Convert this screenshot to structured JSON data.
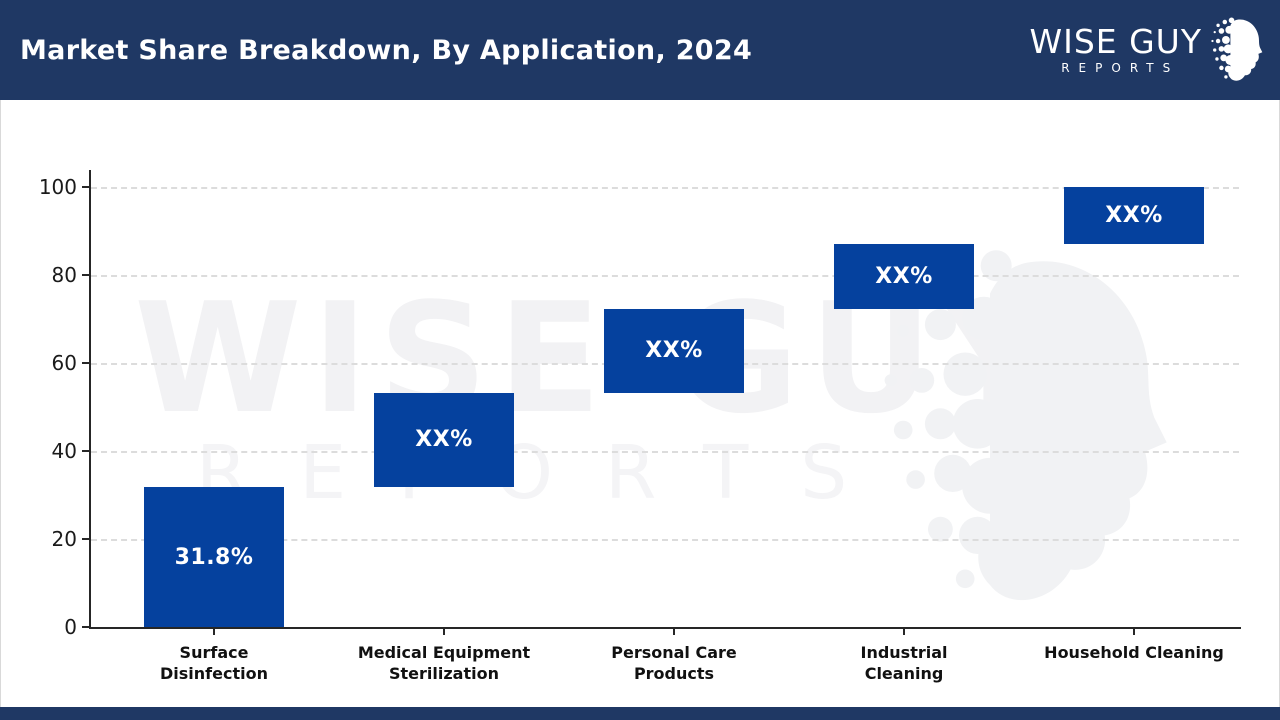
{
  "header": {
    "title": "Market Share Breakdown, By Application, 2024",
    "logo": {
      "line1": "WISE GUY",
      "line2": "REPORTS"
    }
  },
  "watermark": {
    "line1": "WISE GUY",
    "line2": "REPORTS"
  },
  "colors": {
    "header_bg": "#1f3864",
    "footer_bg": "#1f3864",
    "bar": "#05419e",
    "bar_label_text": "#ffffff",
    "axis": "#262626",
    "grid": "#dcdcdc",
    "tick_text": "#1a1a1a",
    "watermark": "#f2f2f4"
  },
  "chart_data": {
    "type": "bar",
    "subtype": "waterfall",
    "title": "Market Share Breakdown, By Application, 2024",
    "categories": [
      "Surface Disinfection",
      "Medical Equipment Sterilization",
      "Personal Care Products",
      "Industrial Cleaning",
      "Household Cleaning"
    ],
    "category_lines": [
      [
        "Surface",
        "Disinfection"
      ],
      [
        "Medical Equipment",
        "Sterilization"
      ],
      [
        "Personal Care",
        "Products"
      ],
      [
        "Industrial",
        "Cleaning"
      ],
      [
        "Household Cleaning"
      ]
    ],
    "bars": [
      {
        "category": "Surface Disinfection",
        "start": 0,
        "end": 31.8,
        "label": "31.8%"
      },
      {
        "category": "Medical Equipment Sterilization",
        "start": 31.8,
        "end": 53.2,
        "label": "XX%"
      },
      {
        "category": "Personal Care Products",
        "start": 53.2,
        "end": 72.3,
        "label": "XX%"
      },
      {
        "category": "Industrial Cleaning",
        "start": 72.3,
        "end": 87.0,
        "label": "XX%"
      },
      {
        "category": "Household Cleaning",
        "start": 87.0,
        "end": 100.0,
        "label": "XX%"
      }
    ],
    "xlabel": "",
    "ylabel": "",
    "ylim": [
      0,
      100
    ],
    "yticks": [
      0,
      20,
      40,
      60,
      80,
      100
    ],
    "grid": "horizontal-dashed",
    "legend": "none"
  }
}
